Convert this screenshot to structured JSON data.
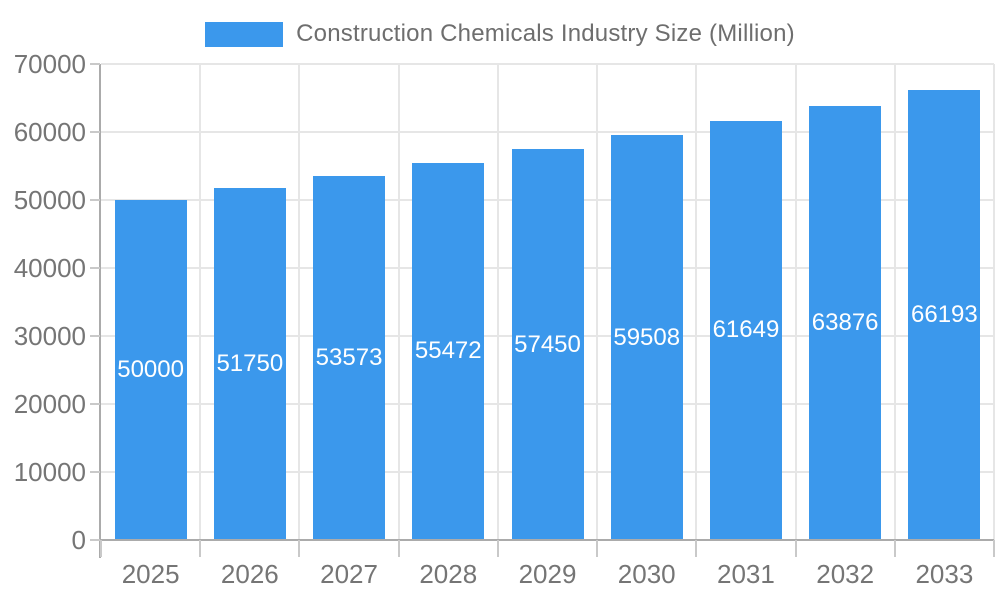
{
  "legend": {
    "label": "Construction Chemicals Industry Size (Million)"
  },
  "chart_data": {
    "type": "bar",
    "title": "Construction Chemicals Industry Size (Million)",
    "categories": [
      "2025",
      "2026",
      "2027",
      "2028",
      "2029",
      "2030",
      "2031",
      "2032",
      "2033"
    ],
    "values": [
      50000,
      51750,
      53573,
      55472,
      57450,
      59508,
      61649,
      63876,
      66193
    ],
    "series": [
      {
        "name": "Construction Chemicals Industry Size (Million)",
        "values": [
          50000,
          51750,
          53573,
          55472,
          57450,
          59508,
          61649,
          63876,
          66193
        ]
      }
    ],
    "xlabel": "",
    "ylabel": "",
    "ylim": [
      0,
      70000
    ],
    "yticks": [
      0,
      10000,
      20000,
      30000,
      40000,
      50000,
      60000,
      70000
    ],
    "grid": true,
    "legend_position": "top",
    "bar_value_labels": "inside-center, white"
  },
  "colors": {
    "bar": "#3b98ec",
    "bar_label": "#ffffff",
    "grid": "#e6e6e6",
    "axis": "#ababab",
    "tick": "#c9c9c9",
    "tick_label": "#757575",
    "legend_text": "#6e6e6e",
    "background": "#ffffff"
  }
}
